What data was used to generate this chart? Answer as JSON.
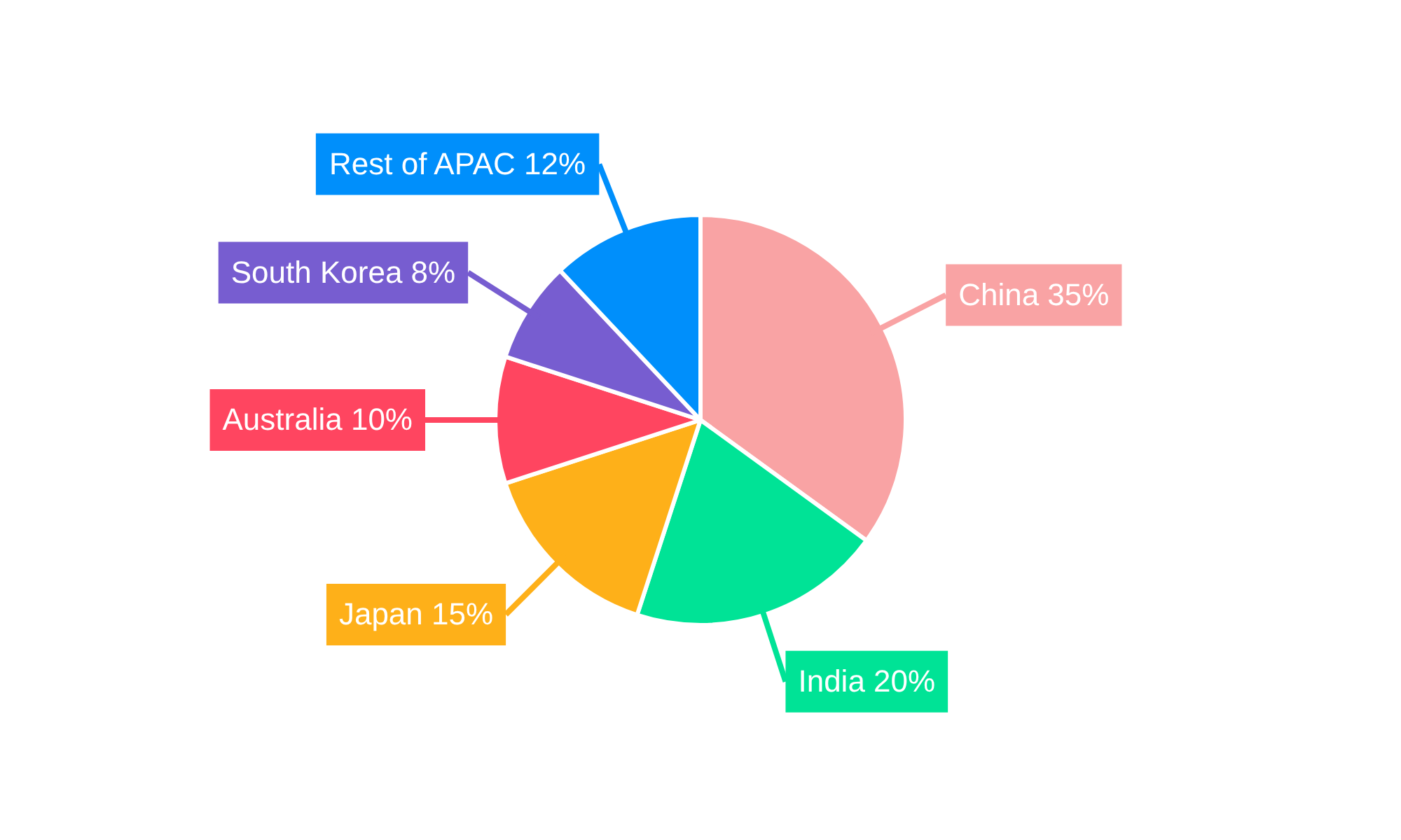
{
  "chart_data": {
    "type": "pie",
    "categories": [
      "China",
      "India",
      "Japan",
      "Australia",
      "South Korea",
      "Rest of APAC"
    ],
    "values": [
      35,
      20,
      15,
      10,
      8,
      12
    ],
    "colors": [
      "#f9a3a4",
      "#00e396",
      "#feb019",
      "#ff4560",
      "#775dd0",
      "#008ffb"
    ],
    "value_labels": [
      "35%",
      "20%",
      "15%",
      "10%",
      "8%",
      "12%"
    ],
    "legend": false
  }
}
